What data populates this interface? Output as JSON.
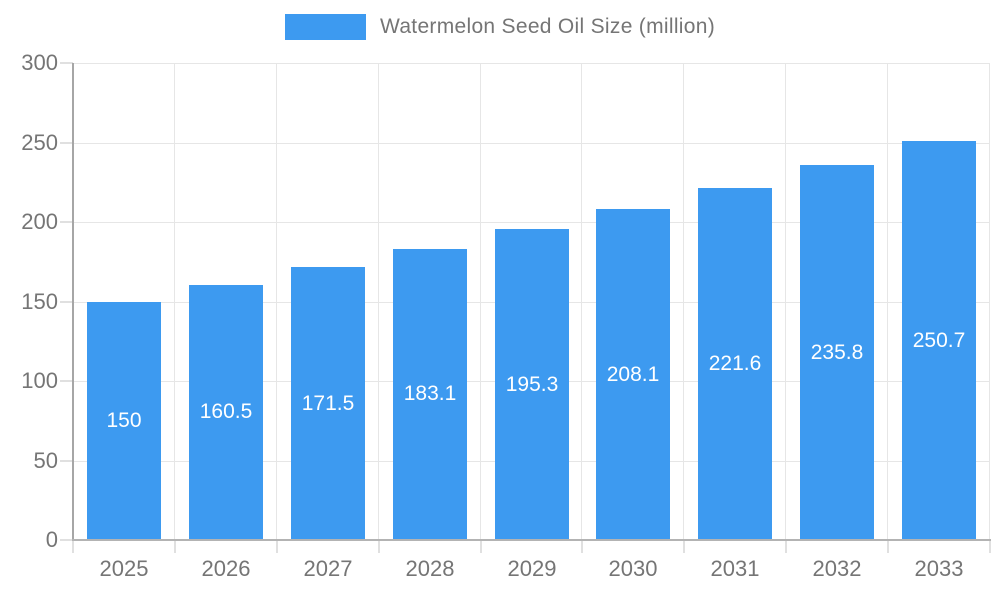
{
  "chart_data": {
    "type": "bar",
    "title": "Watermelon Seed Oil Size (million)",
    "categories": [
      "2025",
      "2026",
      "2027",
      "2028",
      "2029",
      "2030",
      "2031",
      "2032",
      "2033"
    ],
    "values": [
      150,
      160.5,
      171.5,
      183.1,
      195.3,
      208.1,
      221.6,
      235.8,
      250.7
    ],
    "xlabel": "",
    "ylabel": "",
    "ylim": [
      0,
      300
    ],
    "y_ticks": [
      0,
      50,
      100,
      150,
      200,
      250,
      300
    ],
    "grid": true,
    "legend_position": "top",
    "colors": {
      "bar": "#3d9af0",
      "bar_label": "#ffffff",
      "axis_text": "#757575",
      "grid_line": "#e6e6e6",
      "y_axis_line": "#a6a6a6",
      "x_axis_line": "#b3b3b3",
      "tick": "#e0e0e0"
    }
  }
}
